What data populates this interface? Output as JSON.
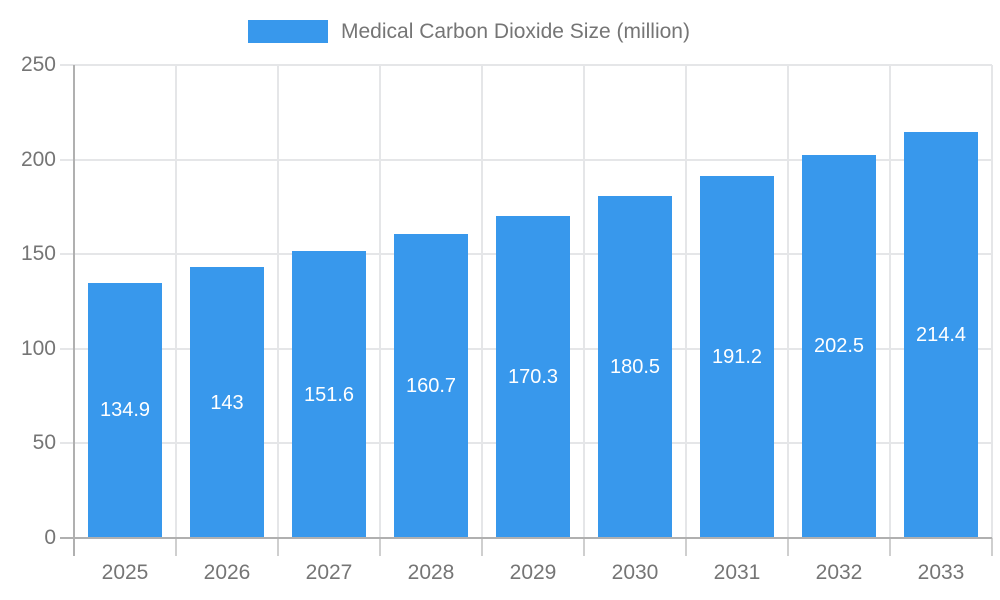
{
  "chart_data": {
    "type": "bar",
    "title": "Medical Carbon Dioxide Size (million)",
    "categories": [
      "2025",
      "2026",
      "2027",
      "2028",
      "2029",
      "2030",
      "2031",
      "2032",
      "2033"
    ],
    "values": [
      134.9,
      143,
      151.6,
      160.7,
      170.3,
      180.5,
      191.2,
      202.5,
      214.4
    ],
    "xlabel": "",
    "ylabel": "",
    "ylim": [
      0,
      250
    ],
    "yticks": [
      0,
      50,
      100,
      150,
      200,
      250
    ],
    "grid": true,
    "legend_position": "top",
    "colors": {
      "bar": "#3898EC",
      "value_label": "#FFFFFF",
      "axis_text": "#757575",
      "gridline": "#E5E6E8",
      "axis_line": "#B0B0B0",
      "axis_tick": "#CFCFCF"
    }
  }
}
